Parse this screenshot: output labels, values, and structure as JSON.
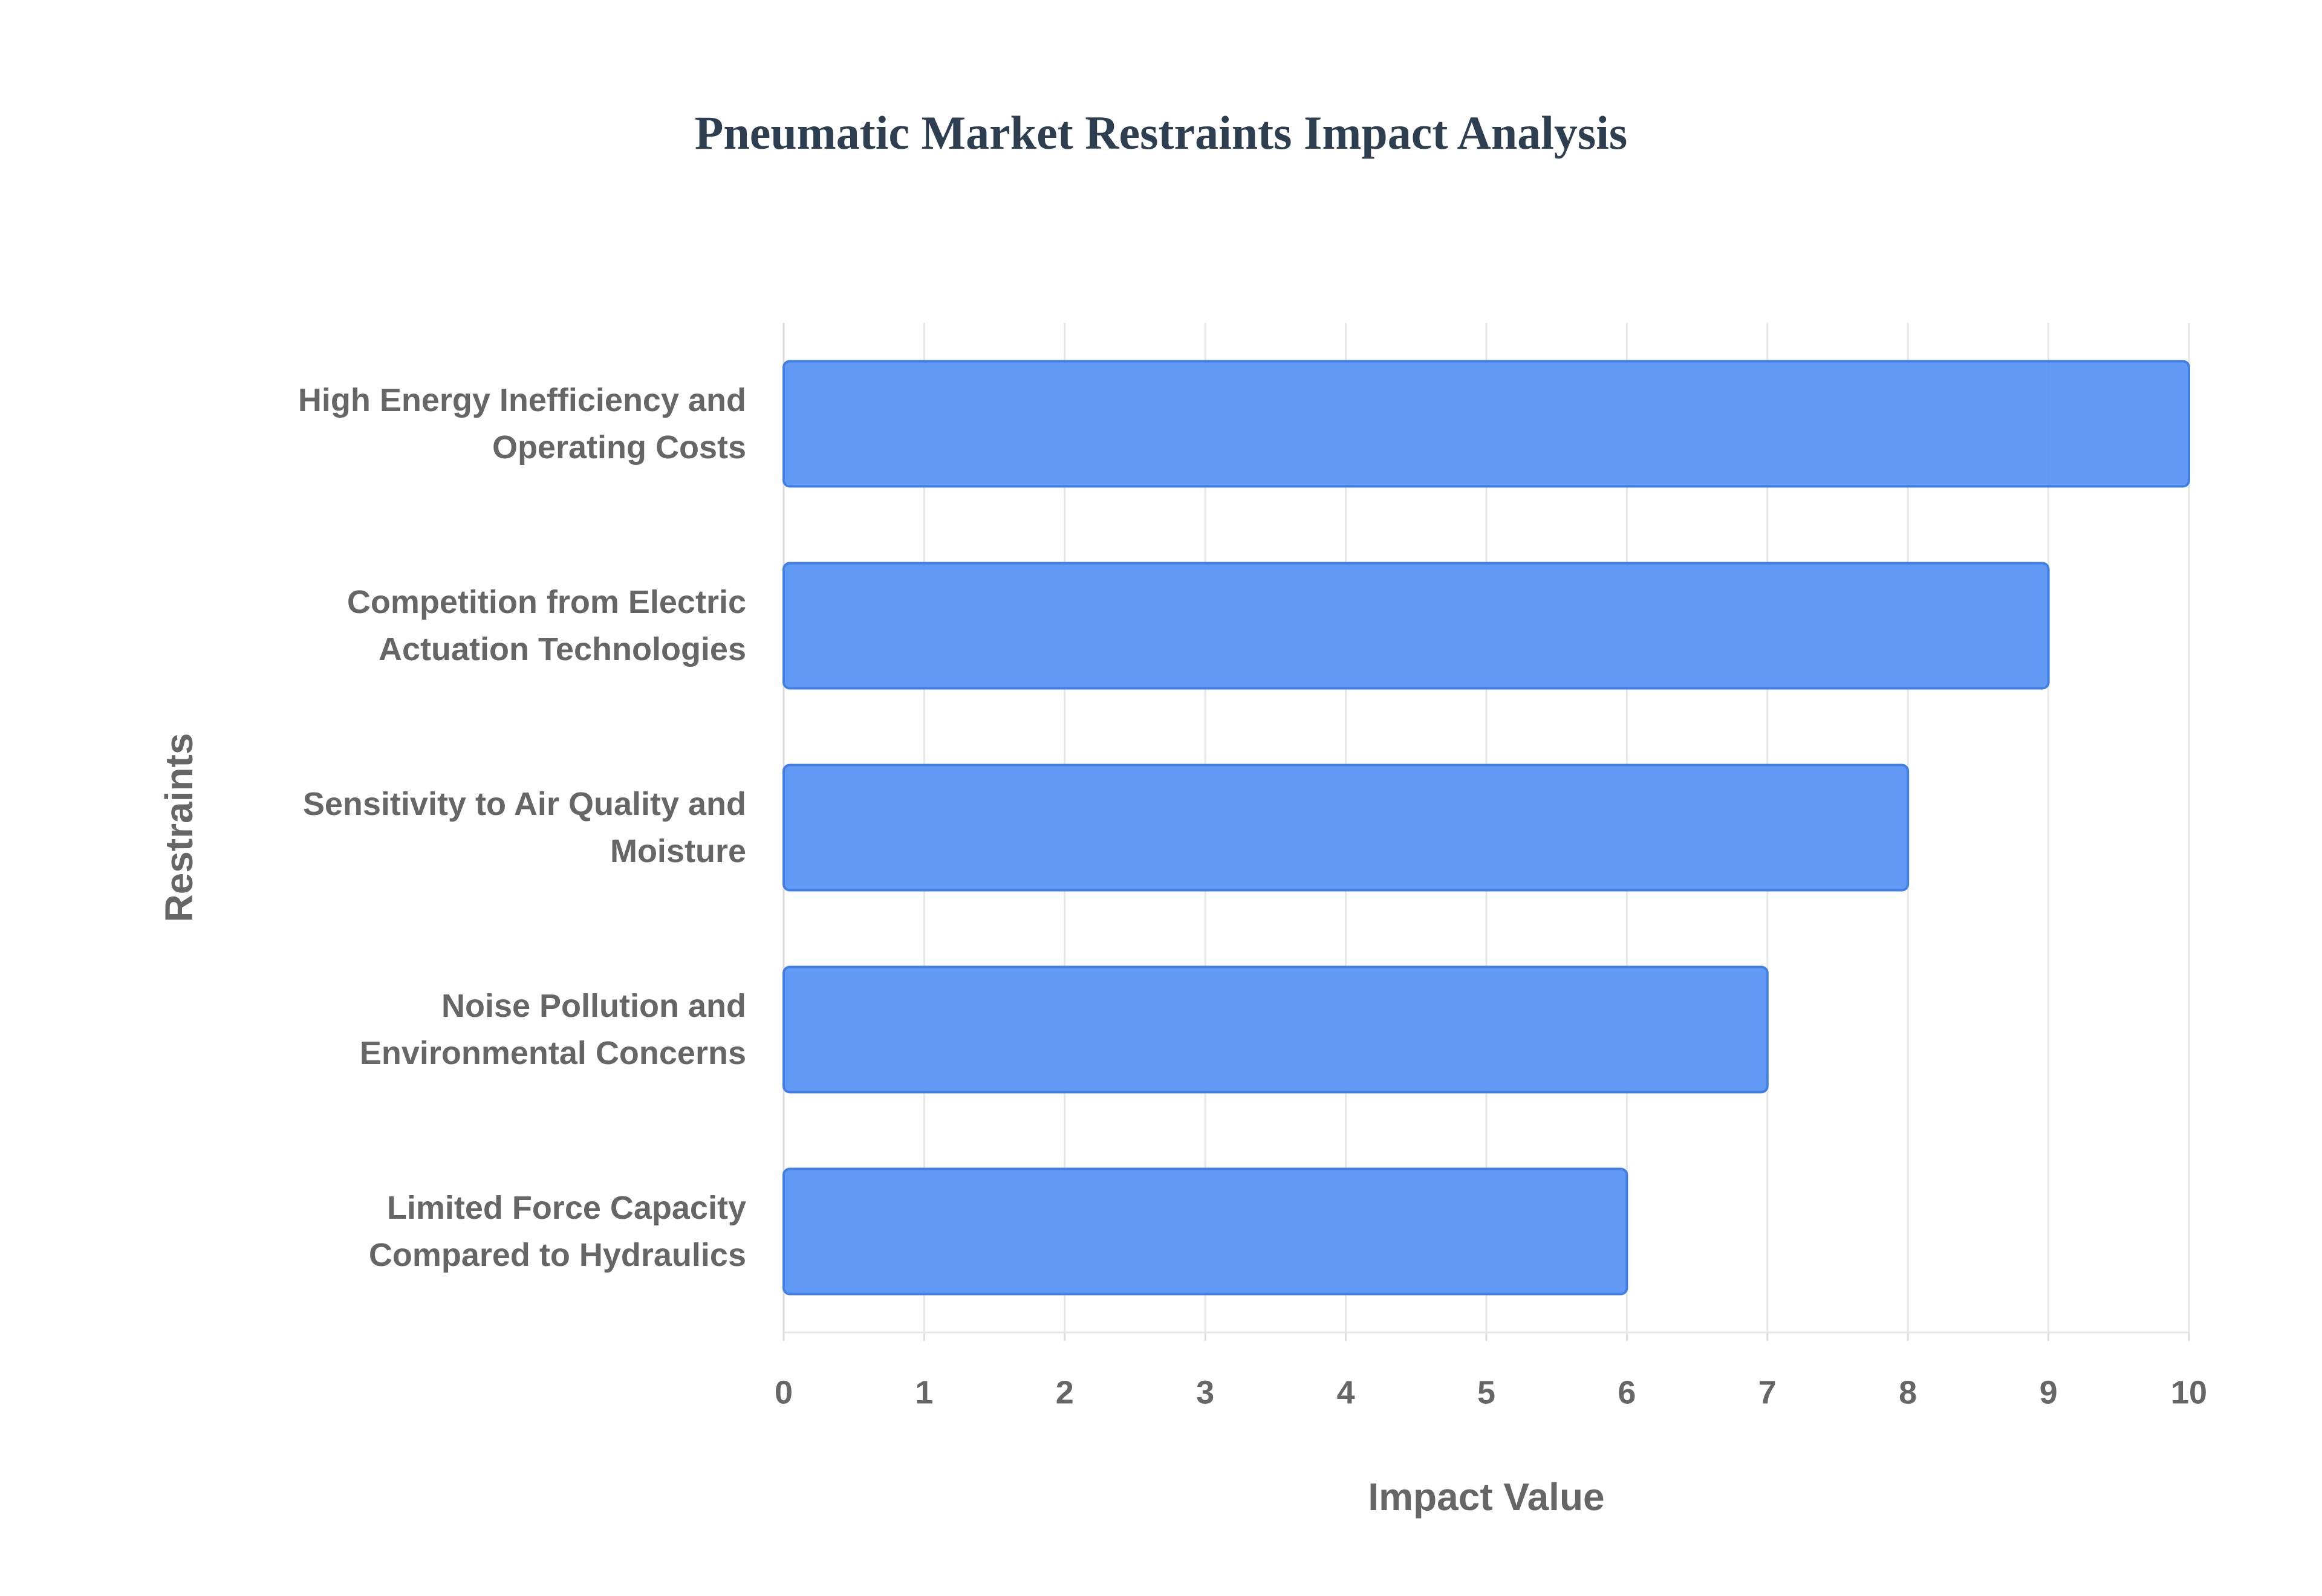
{
  "chart_data": {
    "type": "bar",
    "orientation": "horizontal",
    "title": "Pneumatic Market Restraints Impact Analysis",
    "x_label": "Impact Value",
    "y_label": "Restraints",
    "categories": [
      "High Energy Inefficiency and Operating Costs",
      "Competition from Electric Actuation Technologies",
      "Sensitivity to Air Quality and Moisture",
      "Noise Pollution and Environmental Concerns",
      "Limited Force Capacity Compared to Hydraulics"
    ],
    "values": [
      10,
      9,
      8,
      7,
      6
    ],
    "color": "#5b95f5",
    "xlim": [
      0,
      10
    ],
    "xticks": [
      0,
      1,
      2,
      3,
      4,
      5,
      6,
      7,
      8,
      9,
      10
    ],
    "grid": true
  }
}
